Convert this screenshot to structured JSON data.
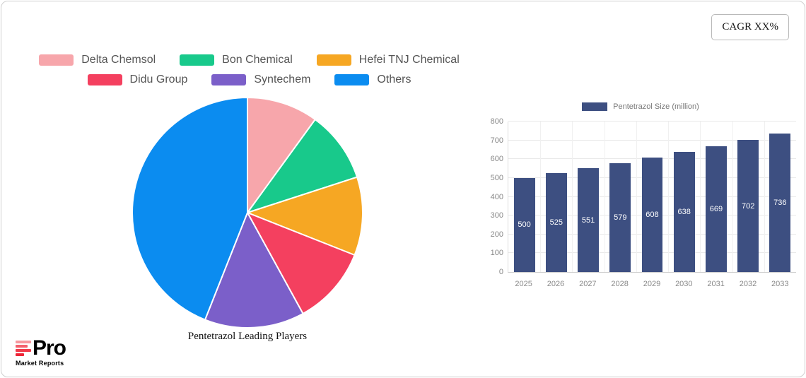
{
  "header": {
    "cagr_label": "CAGR XX%"
  },
  "logo": {
    "brand": "Pro",
    "subtitle": "Market Reports"
  },
  "icons": {
    "logo_bars": "stacked-bars-icon"
  },
  "chart_data": [
    {
      "type": "pie",
      "title": "Pentetrazol Leading Players",
      "labels": [
        "Delta Chemsol",
        "Bon Chemical",
        "Hefei TNJ Chemical",
        "Didu Group",
        "Syntechem",
        "Others"
      ],
      "values": [
        10,
        10,
        11,
        11,
        14,
        44
      ],
      "colors": [
        "#f7a6ab",
        "#18c98b",
        "#f6a723",
        "#f4405f",
        "#7b5fc9",
        "#0b8cf0"
      ],
      "legend_rows": [
        [
          0,
          1,
          2
        ],
        [
          3,
          4,
          5
        ]
      ],
      "legend_position": "top",
      "start_angle_deg": -90,
      "direction": "clockwise",
      "slice_border_color": "#ffffff"
    },
    {
      "type": "bar",
      "categories": [
        "2025",
        "2026",
        "2027",
        "2028",
        "2029",
        "2030",
        "2031",
        "2032",
        "2033"
      ],
      "series": [
        {
          "name": "Pentetrazol Size (million)",
          "values": [
            500,
            525,
            551,
            579,
            608,
            638,
            669,
            702,
            736
          ]
        }
      ],
      "bar_color": "#3d4f81",
      "value_label_color": "#ffffff",
      "ylim": [
        0,
        800
      ],
      "ytick_step": 100,
      "grid": true,
      "legend_position": "top",
      "value_labels": "inside-center"
    }
  ]
}
